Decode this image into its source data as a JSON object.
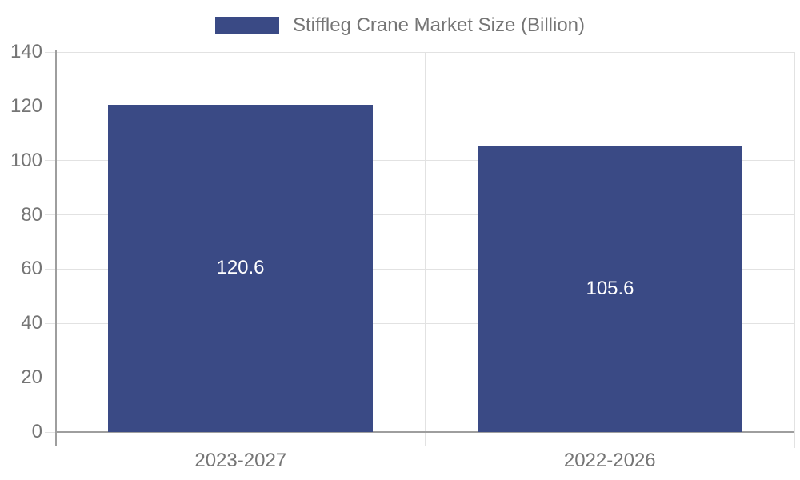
{
  "chart_data": {
    "type": "bar",
    "title": "Stiffleg Crane Market Size (Billion)",
    "categories": [
      "2023-2027",
      "2022-2026"
    ],
    "values": [
      120.6,
      105.6
    ],
    "value_labels": [
      "120.6",
      "105.6"
    ],
    "ylim": [
      0,
      140
    ],
    "yticks": [
      0,
      20,
      40,
      60,
      80,
      100,
      120,
      140
    ],
    "grid": true,
    "legend_position": "top-center",
    "bar_color": "#3a4a85",
    "label_color": "#ffffff",
    "axis_color": "#9e9e9e",
    "grid_color": "#e2e2e2",
    "text_color": "#757575",
    "background": "#ffffff"
  }
}
